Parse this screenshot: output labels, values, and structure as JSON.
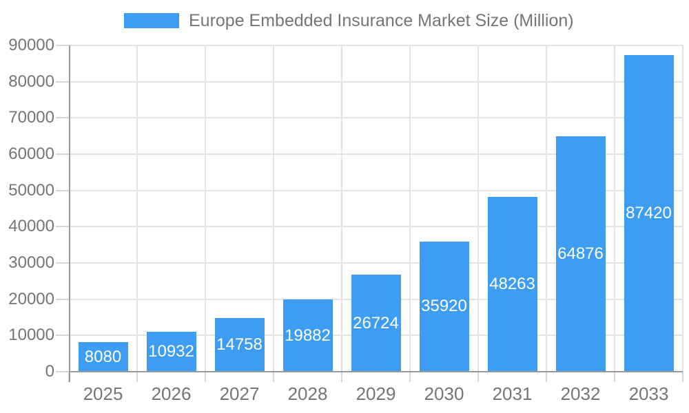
{
  "chart_data": {
    "type": "bar",
    "title": "",
    "categories": [
      "2025",
      "2026",
      "2027",
      "2028",
      "2029",
      "2030",
      "2031",
      "2032",
      "2033"
    ],
    "series": [
      {
        "name": "Europe Embedded Insurance Market Size (Million)",
        "values": [
          8080,
          10932,
          14758,
          19882,
          26724,
          35920,
          48263,
          64876,
          87420
        ]
      }
    ],
    "xlabel": "",
    "ylabel": "",
    "ylim": [
      0,
      90000
    ],
    "ytick_step": 10000,
    "grid": true,
    "bar_labels_shown": true,
    "legend_position": "top-center",
    "colors": {
      "bar": "#3D9DF3",
      "grid": "#E3E3E3",
      "tick": "#D6D6D6",
      "axis": "#999999",
      "text": "#757575",
      "bar_label": "#FFFFFF",
      "background": "#FFFFFF"
    }
  }
}
